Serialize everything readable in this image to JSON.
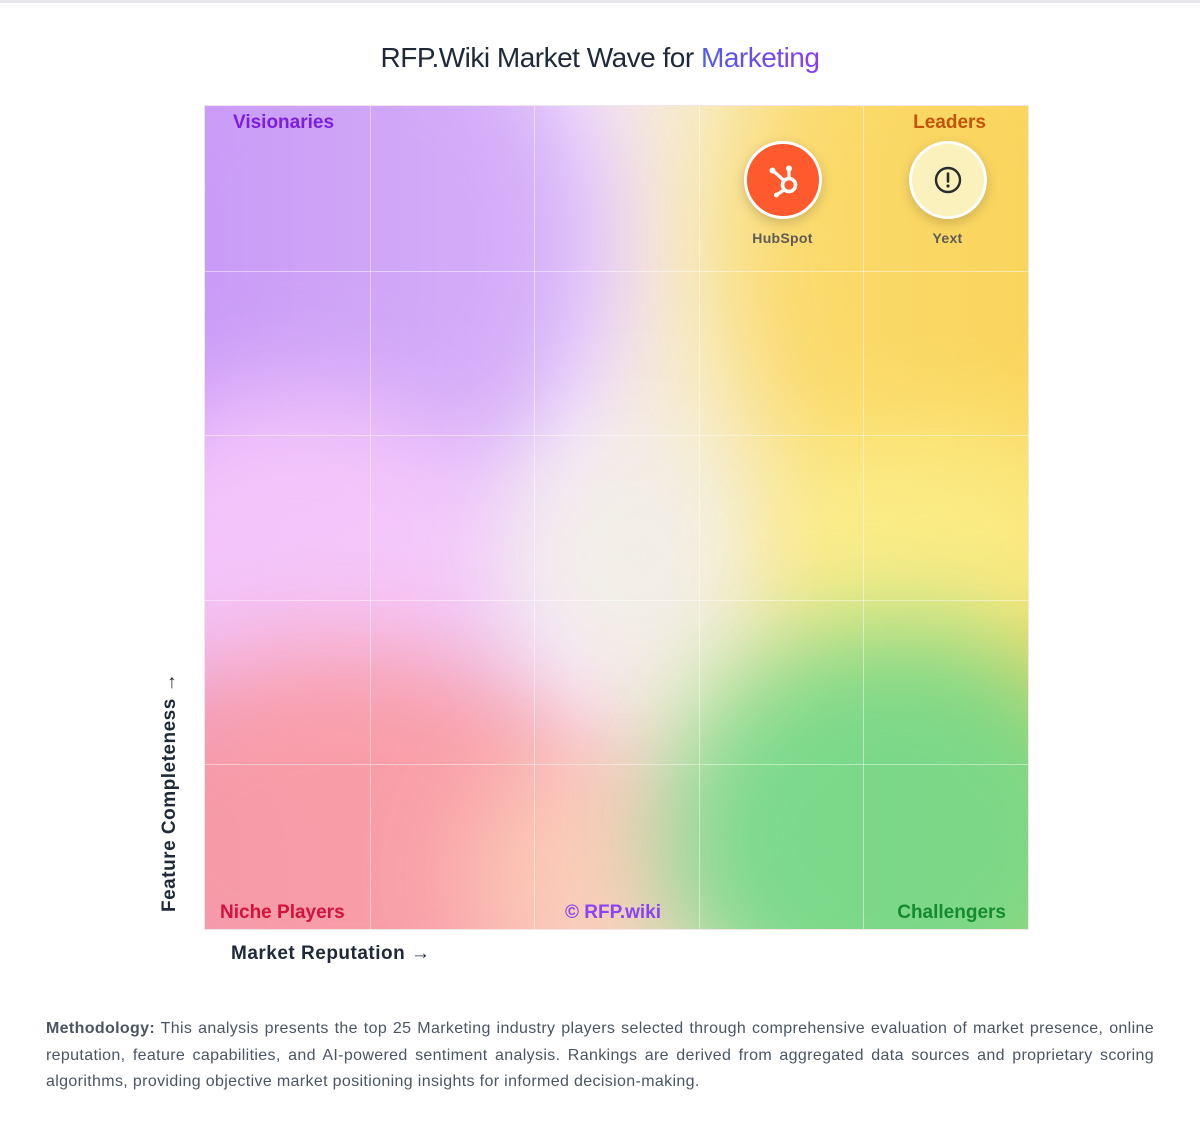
{
  "title": {
    "prefix": "RFP.Wiki Market Wave for",
    "highlight": "Marketing"
  },
  "chart_data": {
    "type": "scatter",
    "title": "RFP.Wiki Market Wave for Marketing",
    "xlabel": "Market Reputation →",
    "ylabel": "Feature Completeness →",
    "xlim": [
      0,
      100
    ],
    "ylim": [
      0,
      100
    ],
    "grid": true,
    "quadrants": {
      "top_left": "Visionaries",
      "top_right": "Leaders",
      "bottom_left": "Niche Players",
      "bottom_right": "Challengers"
    },
    "points": [
      {
        "name": "HubSpot",
        "x": 70,
        "y": 91,
        "icon": "hubspot-sprocket-icon",
        "color": "#ff5a2e"
      },
      {
        "name": "Yext",
        "x": 90,
        "y": 91,
        "icon": "exclamation-circle-icon",
        "color": "#fbf1bd"
      }
    ],
    "watermark": "© RFP.wiki"
  },
  "methodology": {
    "label": "Methodology:",
    "text": "This analysis presents the top 25 Marketing industry players selected through comprehensive evaluation of market presence, online reputation, feature capabilities, and AI-powered sentiment analysis. Rankings are derived from aggregated data sources and proprietary scoring algorithms, providing objective market positioning insights for informed decision-making."
  }
}
